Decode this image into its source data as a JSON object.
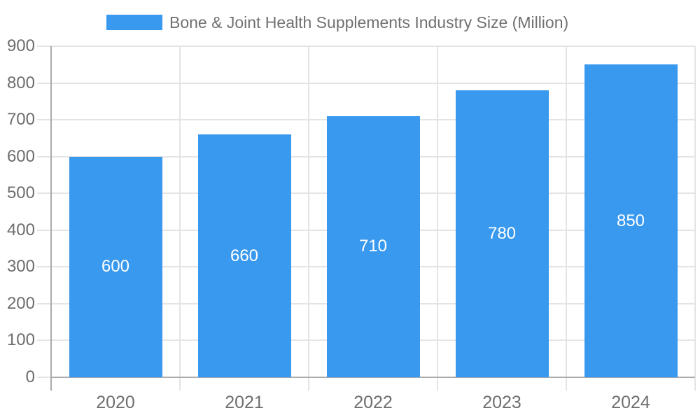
{
  "chart_data": {
    "type": "bar",
    "title": "Bone & Joint Health Supplements Industry Size (Million)",
    "legend": {
      "position": "top",
      "label": "Bone & Joint Health Supplements Industry Size (Million)"
    },
    "categories": [
      "2020",
      "2021",
      "2022",
      "2023",
      "2024"
    ],
    "values": [
      600,
      660,
      710,
      780,
      850
    ],
    "value_labels": [
      "600",
      "660",
      "710",
      "780",
      "850"
    ],
    "xlabel": "",
    "ylabel": "",
    "ylim": [
      0,
      900
    ],
    "ytick_step": 100,
    "ytick_labels": [
      "0",
      "100",
      "200",
      "300",
      "400",
      "500",
      "600",
      "700",
      "800",
      "900"
    ],
    "grid": "horizontal and vertical, light gray, ticks overhang outside axes",
    "colors": {
      "bar": "#3999EE",
      "grid": "#E4E4E4",
      "axis_line": "#ABABAB",
      "tick_label": "#6E6E6E",
      "legend_text": "#707070",
      "bar_value_text": "#FFFFFF",
      "background": "#FFFFFF"
    }
  }
}
